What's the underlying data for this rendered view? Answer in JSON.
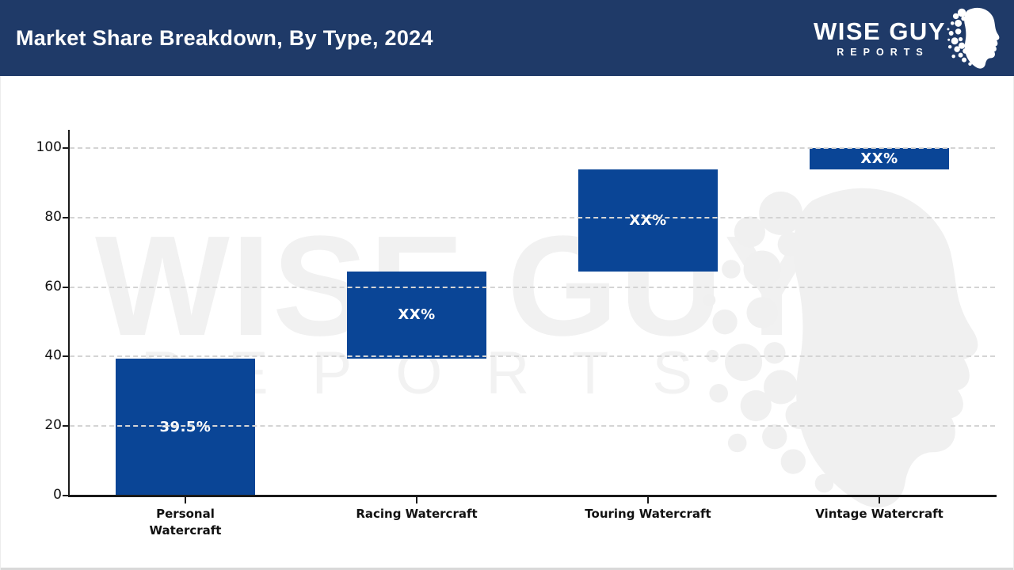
{
  "header": {
    "title": "Market Share Breakdown, By Type, 2024",
    "background_color": "#1f3a68",
    "logo": {
      "name": "WISE GUY",
      "sub": "REPORTS"
    }
  },
  "watermark": {
    "name": "WISE GUY",
    "sub": "REPORTS"
  },
  "chart_data": {
    "type": "bar",
    "subtype": "waterfall",
    "title": "Market Share Breakdown, By Type, 2024",
    "categories": [
      "Personal Watercraft",
      "Racing Watercraft",
      "Touring Watercraft",
      "Vintage Watercraft"
    ],
    "category_label_lines": [
      [
        "Personal",
        "Watercraft"
      ],
      [
        "Racing Watercraft"
      ],
      [
        "Touring Watercraft"
      ],
      [
        "Vintage Watercraft"
      ]
    ],
    "series": [
      {
        "name": "Market share (%)",
        "segments": [
          {
            "category": "Personal Watercraft",
            "start": 0,
            "end": 39.5,
            "label": "39.5%"
          },
          {
            "category": "Racing Watercraft",
            "start": 39.5,
            "end": 64.5,
            "label": "XX%"
          },
          {
            "category": "Touring Watercraft",
            "start": 64.5,
            "end": 93.8,
            "label": "XX%"
          },
          {
            "category": "Vintage Watercraft",
            "start": 93.8,
            "end": 100,
            "label": "XX%"
          }
        ]
      }
    ],
    "xlabel": "",
    "ylabel": "",
    "ylim": [
      0,
      100
    ],
    "yticks": [
      0,
      20,
      40,
      60,
      80,
      100
    ],
    "grid": "horizontal-dashed",
    "legend": "none",
    "bar_color": "#0a4596",
    "bar_label_color": "#ffffff"
  }
}
